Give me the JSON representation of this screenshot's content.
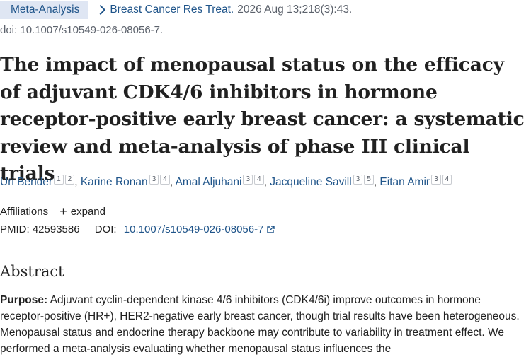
{
  "header": {
    "badge": "Meta-Analysis",
    "journal": "Breast Cancer Res Treat.",
    "citation": "2026 Aug 13;218(3):43.",
    "doi_line": "doi: 10.1007/s10549-026-08056-7."
  },
  "title": "The impact of menopausal status on the efficacy of adjuvant CDK4/6 inhibitors in hormone receptor-positive early breast cancer: a systematic review and meta-analysis of phase III clinical trials",
  "authors": [
    {
      "name": "Uri Bender",
      "affils": [
        "1",
        "2"
      ]
    },
    {
      "name": "Karine Ronan",
      "affils": [
        "3",
        "4"
      ]
    },
    {
      "name": "Amal Aljuhani",
      "affils": [
        "3",
        "4"
      ]
    },
    {
      "name": "Jacqueline Savill",
      "affils": [
        "3",
        "5"
      ]
    },
    {
      "name": "Eitan Amir",
      "affils": [
        "3",
        "4"
      ]
    }
  ],
  "author_separator": ",",
  "affiliations": {
    "label": "Affiliations",
    "expand_label": "expand"
  },
  "ids": {
    "pmid_label": "PMID:",
    "pmid": "42593586",
    "doi_label": "DOI:",
    "doi": "10.1007/s10549-026-08056-7"
  },
  "abstract": {
    "heading": "Abstract",
    "purpose_label": "Purpose:",
    "purpose_text": "Adjuvant cyclin-dependent kinase 4/6 inhibitors (CDK4/6i) improve outcomes in hormone receptor-positive (HR+), HER2-negative early breast cancer, though trial results have been heterogeneous. Menopausal status and endocrine therapy backbone may contribute to variability in treatment effect. We performed a meta-analysis evaluating whether menopausal status influences the"
  },
  "colors": {
    "link": "#20558a",
    "badge_bg": "#dfe6f3",
    "muted": "#5b616b"
  }
}
